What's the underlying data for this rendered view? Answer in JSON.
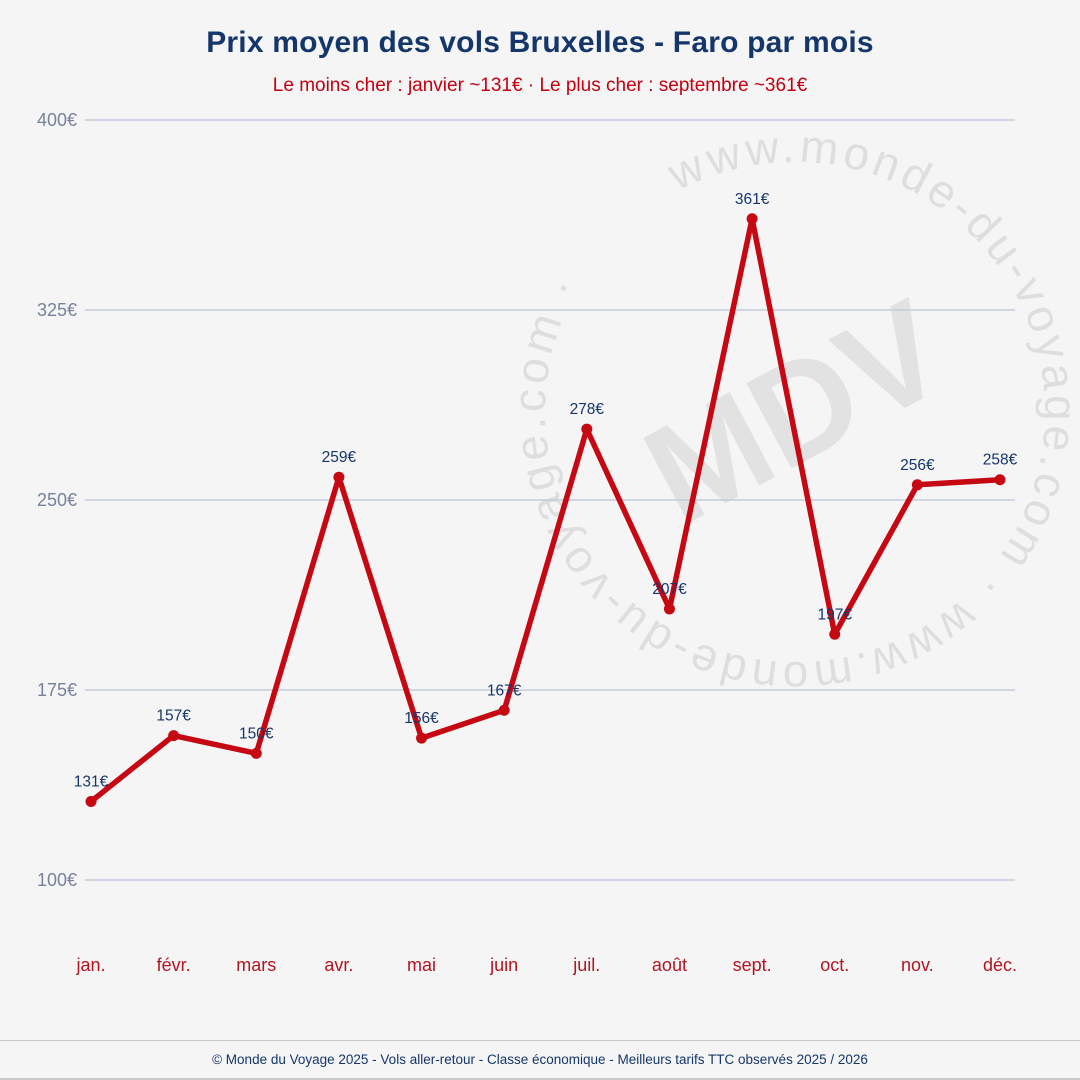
{
  "header": {
    "title": "Prix moyen des vols Bruxelles - Faro par mois",
    "subtitle": "Le moins cher : janvier ~131€ · Le plus cher : septembre ~361€"
  },
  "chart_data": {
    "type": "line",
    "title": "Prix moyen des vols Bruxelles - Faro par mois",
    "categories": [
      "jan.",
      "févr.",
      "mars",
      "avr.",
      "mai",
      "juin",
      "juil.",
      "août",
      "sept.",
      "oct.",
      "nov.",
      "déc."
    ],
    "values": [
      131,
      157,
      150,
      259,
      156,
      167,
      278,
      207,
      361,
      197,
      256,
      258
    ],
    "point_labels": [
      "131€",
      "157€",
      "150€",
      "259€",
      "156€",
      "167€",
      "278€",
      "207€",
      "361€",
      "197€",
      "256€",
      "258€"
    ],
    "unit": "€",
    "xlabel": "",
    "ylabel": "",
    "ylim": [
      100,
      400
    ],
    "y_ticks": [
      400,
      325,
      250,
      175,
      100
    ],
    "y_tick_labels": [
      "400€",
      "325€",
      "250€",
      "175€",
      "100€"
    ],
    "grid": true,
    "legend": false
  },
  "watermark": {
    "ring_text": "www.monde-du-voyage.com",
    "center_label": "MDV"
  },
  "footer": {
    "text": "© Monde du Voyage 2025 - Vols aller-retour - Classe économique - Meilleurs tarifs TTC observés 2025 / 2026"
  },
  "colors": {
    "background": "#f5f5f6",
    "title_navy": "#14366b",
    "subtitle_red": "#c40010",
    "series_red": "#c60813",
    "point_label_navy": "#16356b",
    "x_label_red": "#b31420",
    "y_label_slate": "#76829c",
    "gridline": "#c3cbdb",
    "watermark_gray": "#cfcfcf"
  }
}
